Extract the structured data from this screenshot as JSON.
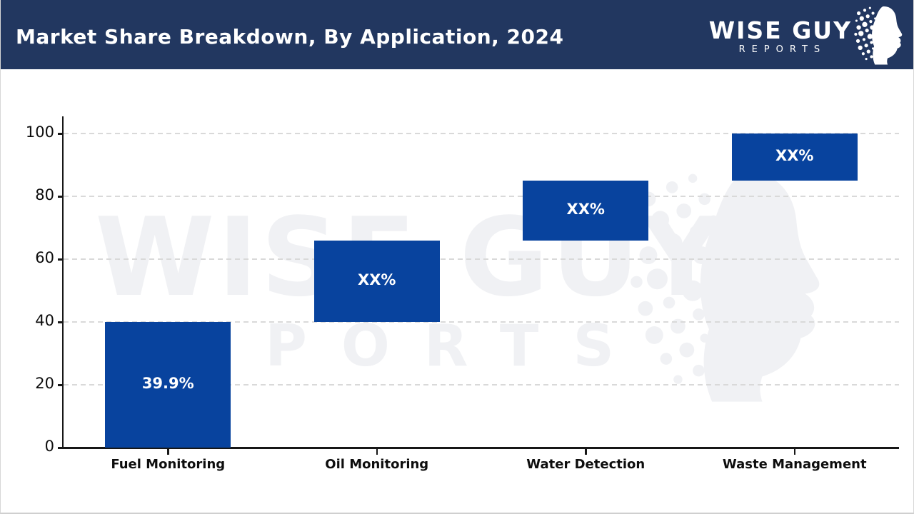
{
  "header": {
    "title": "Market Share Breakdown, By Application, 2024",
    "logo_line1": "WISE GUY",
    "logo_line2": "REPORTS"
  },
  "watermark": {
    "line1": "WISE GUY",
    "line2": "REPORTS"
  },
  "colors": {
    "header_bg": "#223760",
    "bar": "#08439e",
    "grid": "#d9d9d9",
    "axis": "#171717",
    "watermark": "#f0f1f4",
    "value_label": "#ffffff"
  },
  "chart_data": {
    "type": "bar",
    "variant": "waterfall",
    "title": "Market Share Breakdown, By Application, 2024",
    "categories": [
      "Fuel Monitoring",
      "Oil Monitoring",
      "Water Detection",
      "Waste Management"
    ],
    "segments": [
      {
        "category": "Fuel Monitoring",
        "start": 0,
        "end": 39.9,
        "label": "39.9%"
      },
      {
        "category": "Oil Monitoring",
        "start": 40,
        "end": 66,
        "label": "XX%"
      },
      {
        "category": "Water Detection",
        "start": 66,
        "end": 84.9,
        "label": "XX%"
      },
      {
        "category": "Waste Management",
        "start": 84.9,
        "end": 100,
        "label": "XX%"
      }
    ],
    "xlabel": "",
    "ylabel": "",
    "ylim": [
      0,
      100
    ],
    "yticks": [
      0,
      20,
      40,
      60,
      80,
      100
    ],
    "grid": "horizontal-dashed",
    "legend": "none",
    "bar_color": "#08439e",
    "value_label_color": "#ffffff"
  }
}
